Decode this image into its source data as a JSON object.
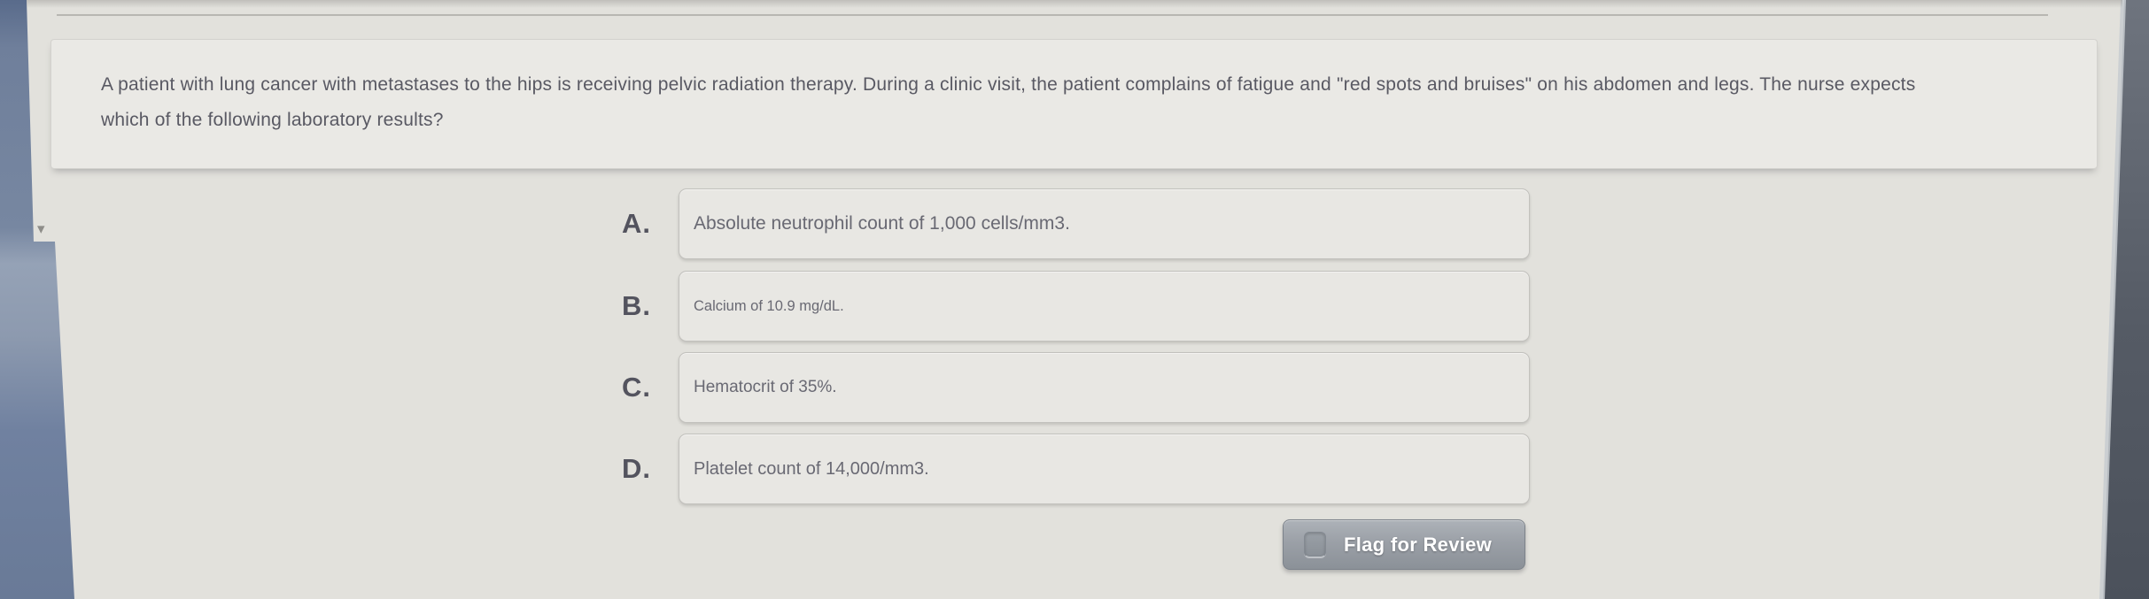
{
  "question": {
    "line1": "A patient with lung cancer with metastases to the hips is receiving pelvic radiation therapy. During a clinic visit, the patient complains of fatigue and \"red spots and bruises\" on his abdomen and legs. The nurse expects",
    "line2": "which of the following laboratory results?"
  },
  "options": [
    {
      "letter": "A.",
      "text": "Absolute neutrophil count of 1,000 cells/mm3."
    },
    {
      "letter": "B.",
      "text": "Calcium of 10.9 mg/dL."
    },
    {
      "letter": "C.",
      "text": "Hematocrit of 35%."
    },
    {
      "letter": "D.",
      "text": "Platelet count of 14,000/mm3."
    }
  ],
  "flag_button": {
    "label": "Flag for Review",
    "checked": false
  },
  "icons": {
    "collapse_arrow": "▾"
  },
  "colors": {
    "desk_background": "#76869f",
    "screen_background": "#e2e1dc",
    "card_background": "#eae9e5",
    "option_border": "#c2c1bd",
    "question_text": "#595963",
    "option_letter": "#53535e",
    "option_text": "#696973",
    "flag_button": "#9ba0a7",
    "flag_button_text": "#ffffff",
    "screen_edge_right": "#555b65"
  }
}
